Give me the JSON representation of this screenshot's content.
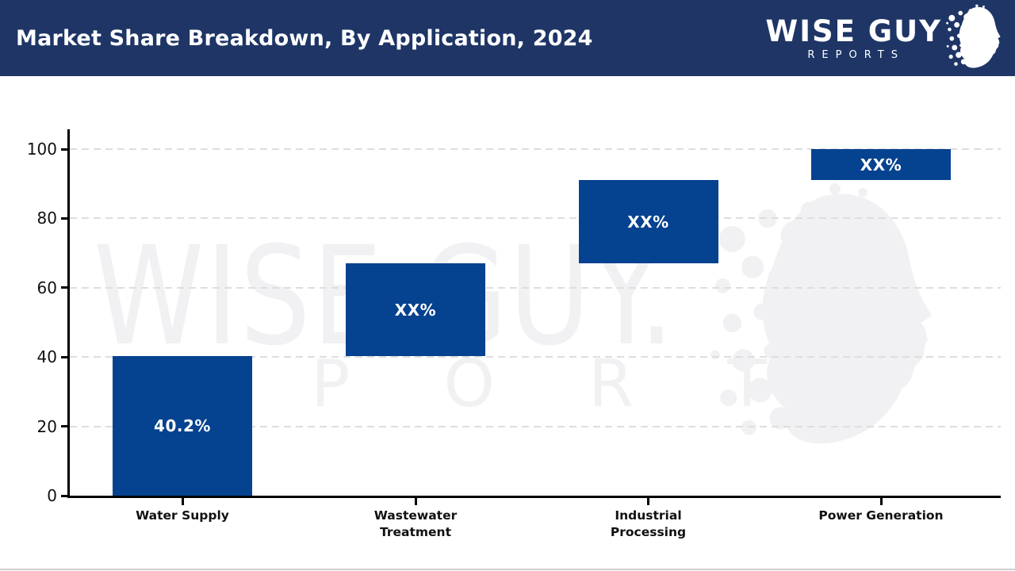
{
  "header": {
    "title": "Market Share Breakdown, By Application, 2024",
    "logo": {
      "brand_line1": "WISE GUY",
      "brand_line2": "REPORTS",
      "face_icon": "dotted-head-profile-icon"
    }
  },
  "watermark": {
    "line1": "WISE GUY.",
    "line2": "P O R T S",
    "face_icon": "dotted-head-profile-icon"
  },
  "colors": {
    "header_bg": "#1E3566",
    "bar": "#05428F",
    "bar_label": "#FFFFFF",
    "grid": "#DEDEDE",
    "axis": "#000000",
    "watermark": "#F1F1F3"
  },
  "chart_data": {
    "type": "bar",
    "subtype": "waterfall",
    "title": "Market Share Breakdown, By Application, 2024",
    "xlabel": "",
    "ylabel": "",
    "ylim": [
      0,
      106
    ],
    "yticks": [
      0,
      20,
      40,
      60,
      80,
      100
    ],
    "grid": "dashed horizontal gridlines",
    "legend": "none",
    "categories": [
      "Water Supply",
      "Wastewater Treatment",
      "Industrial Processing",
      "Power Generation"
    ],
    "category_lines": [
      [
        "Water Supply"
      ],
      [
        "Wastewater",
        "Treatment"
      ],
      [
        "Industrial",
        "Processing"
      ],
      [
        "Power Generation"
      ]
    ],
    "segments": [
      {
        "category": "Water Supply",
        "start": 0,
        "end": 40.2,
        "label": "40.2%"
      },
      {
        "category": "Wastewater Treatment",
        "start": 40.2,
        "end": 67,
        "label": "XX%"
      },
      {
        "category": "Industrial Processing",
        "start": 67,
        "end": 91,
        "label": "XX%"
      },
      {
        "category": "Power Generation",
        "start": 91,
        "end": 100,
        "label": "XX%"
      }
    ]
  }
}
